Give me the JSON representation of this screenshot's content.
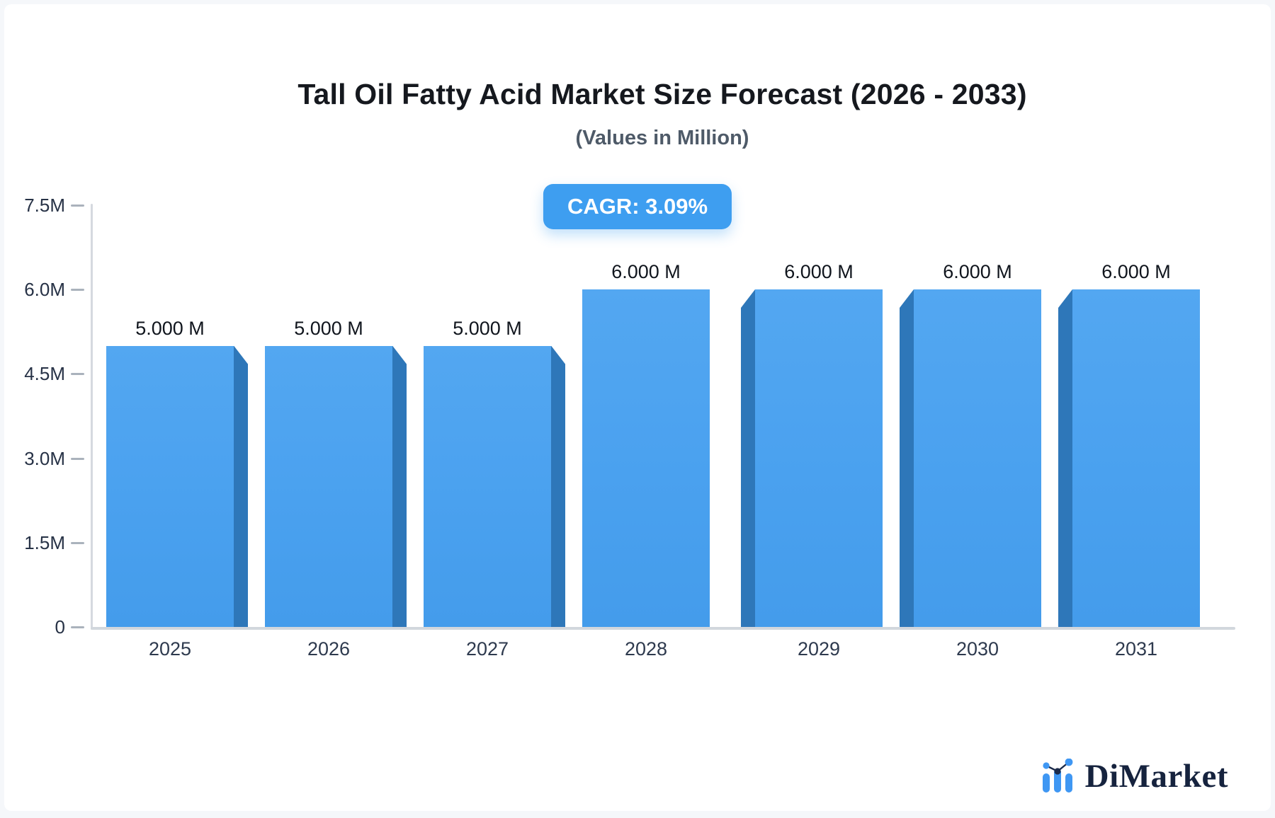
{
  "header": {
    "title": "Tall Oil Fatty Acid Market Size Forecast (2026 - 2033)",
    "subtitle": "(Values in Million)",
    "cagr_label": "CAGR: 3.09%"
  },
  "colors": {
    "bar_body": "#4aa1ef",
    "bar_side": "#2e77b9",
    "badge_bg": "#3e9ef0",
    "axis_line": "#d5d9df",
    "page_bg": "#f5f7fa",
    "brand_navy": "#16233e",
    "brand_blue": "#3f97f3"
  },
  "chart_data": {
    "type": "bar",
    "title": "Tall Oil Fatty Acid Market Size Forecast (2026 - 2033)",
    "subtitle": "(Values in Million)",
    "categories": [
      "2025",
      "2026",
      "2027",
      "2028",
      "2029",
      "2030",
      "2031"
    ],
    "values": [
      5,
      5,
      5,
      6,
      6,
      6,
      6
    ],
    "value_labels": [
      "5.000 M",
      "5.000 M",
      "5.000 M",
      "6.000 M",
      "6.000 M",
      "6.000 M",
      "6.000 M"
    ],
    "unit": "Million",
    "ylim": [
      0,
      7.5
    ],
    "yticks": [
      {
        "label": "7.5M",
        "value": 7.5
      },
      {
        "label": "6.0M",
        "value": 6.0
      },
      {
        "label": "4.5M",
        "value": 4.5
      },
      {
        "label": "3.0M",
        "value": 3.0
      },
      {
        "label": "1.5M",
        "value": 1.5
      },
      {
        "label": "0",
        "value": 0
      }
    ],
    "grid": false,
    "legend": false,
    "annotation": "CAGR: 3.09%"
  },
  "footer": {
    "brand": "DiMarket"
  }
}
